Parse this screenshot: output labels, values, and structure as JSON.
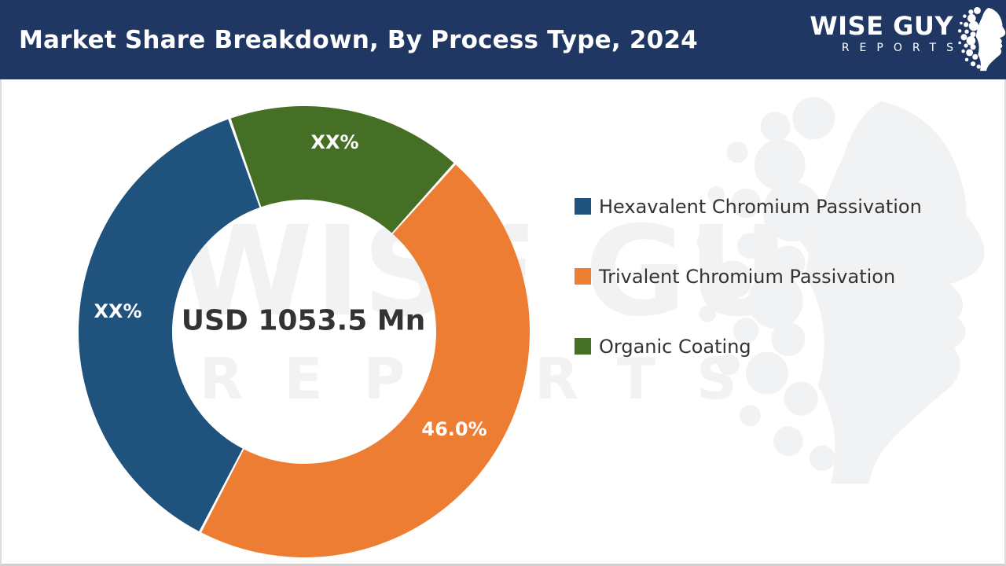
{
  "header": {
    "title": "Market Share Breakdown, By Process Type, 2024",
    "logo": {
      "name": "WISE GUY",
      "sub": "REPORTS"
    }
  },
  "watermark": {
    "name": "WISE GUY",
    "sub": "REPORTS"
  },
  "chart_data": {
    "type": "pie",
    "subtype": "donut",
    "title": "Market Share Breakdown, By Process Type, 2024",
    "center_label": "USD 1053.5 Mn",
    "legend_position": "right",
    "start_angle_deg": -19.3,
    "gap_pct": 0.18,
    "draw_order": [
      2,
      1,
      0
    ],
    "segments": [
      {
        "name": "Hexavalent Chromium Passivation",
        "label": "XX%",
        "pct": 37,
        "pct_is_masked": true,
        "color": "#1f537d"
      },
      {
        "name": "Trivalent Chromium Passivation",
        "label": "46.0%",
        "pct": 46,
        "pct_is_masked": false,
        "color": "#ec7d33"
      },
      {
        "name": "Organic Coating",
        "label": "XX%",
        "pct": 17,
        "pct_is_masked": true,
        "color": "#446f24"
      }
    ]
  },
  "colors": {
    "header_bg": "#213763",
    "text_dark": "#333333",
    "watermark": "#f1f2f4",
    "edge_line": "#d0d0d0"
  }
}
